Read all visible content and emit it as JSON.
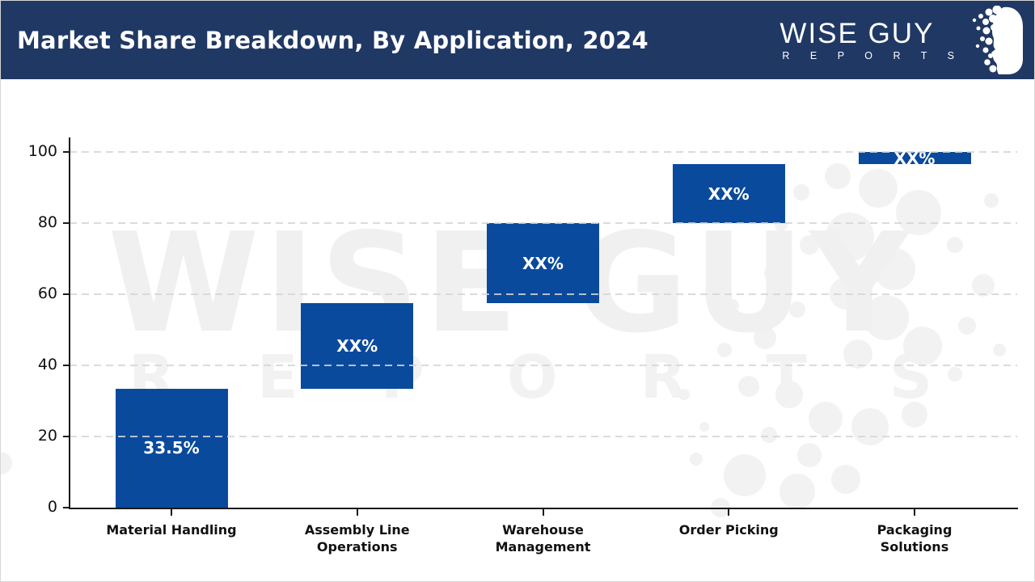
{
  "header": {
    "title": "Market Share Breakdown, By Application, 2024",
    "logo": {
      "line1": "WISE GUY",
      "line2": "R E P O R T S"
    }
  },
  "watermark": {
    "line1": "WISE GUY",
    "line2": "REPORTS"
  },
  "colors": {
    "header_bg": "#203864",
    "bar_blue": "#0a4a9d",
    "grid_gray": "#d5d5d5",
    "axis_black": "#1a1a1a",
    "bar_label_white": "#ffffff",
    "watermark_gray": "#f0f0f0"
  },
  "chart_data": {
    "type": "bar",
    "subtype": "waterfall",
    "title": "Market Share Breakdown, By Application, 2024",
    "categories": [
      "Material Handling",
      "Assembly Line\nOperations",
      "Warehouse\nManagement",
      "Order Picking",
      "Packaging\nSolutions"
    ],
    "segments": [
      {
        "category": "Material Handling",
        "start": 0,
        "end": 33.5,
        "label": "33.5%"
      },
      {
        "category": "Assembly Line Operations",
        "start": 33.5,
        "end": 57.5,
        "label": "XX%"
      },
      {
        "category": "Warehouse Management",
        "start": 57.5,
        "end": 80,
        "label": "XX%"
      },
      {
        "category": "Order Picking",
        "start": 80,
        "end": 96.5,
        "label": "XX%"
      },
      {
        "category": "Packaging Solutions",
        "start": 96.5,
        "end": 100,
        "label": "XX%"
      }
    ],
    "y_ticks": [
      0,
      20,
      40,
      60,
      80,
      100
    ],
    "ylim": [
      0,
      104
    ],
    "xlabel": "",
    "ylabel": "",
    "grid": "horizontal-dashed",
    "legend": "none"
  }
}
